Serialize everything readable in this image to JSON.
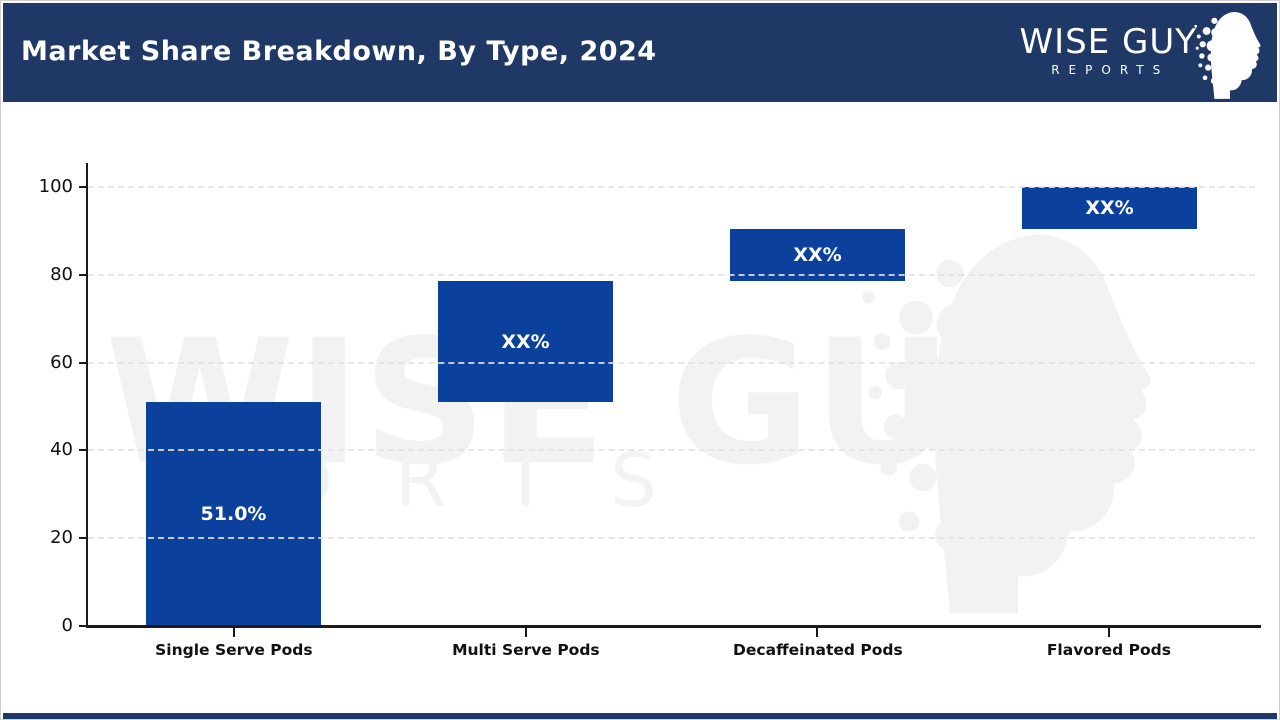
{
  "header": {
    "title": "Market Share Breakdown, By Type, 2024",
    "bg_color": "#1f3866",
    "logo": {
      "line1": "WISE GUY",
      "line2": "REPORTS"
    }
  },
  "watermark": {
    "line1": "WISE GUY",
    "line2": "PORTS"
  },
  "colors": {
    "bar": "#0b419c",
    "header_navy": "#1f3866",
    "grid": "#e2e2e2",
    "axis": "#1a1a1a",
    "value_label": "#ffffff",
    "watermark": "#f2f2f2"
  },
  "chart_data": {
    "type": "bar",
    "subtype": "waterfall",
    "title": "Market Share Breakdown, By Type, 2024",
    "categories": [
      "Single Serve Pods",
      "Multi Serve Pods",
      "Decaffeinated Pods",
      "Flavored Pods"
    ],
    "segments": [
      {
        "label": "51.0%",
        "start": 0,
        "end": 51.0
      },
      {
        "label": "XX%",
        "start": 51.0,
        "end": 78.6
      },
      {
        "label": "XX%",
        "start": 78.6,
        "end": 90.5
      },
      {
        "label": "XX%",
        "start": 90.5,
        "end": 100.0
      }
    ],
    "xlabel": "",
    "ylabel": "",
    "yticks": [
      0,
      20,
      40,
      60,
      80,
      100
    ],
    "ylim": [
      0,
      105.5
    ],
    "grid": "horizontal-dashed",
    "legend": "none",
    "bar_color": "#0b419c"
  }
}
